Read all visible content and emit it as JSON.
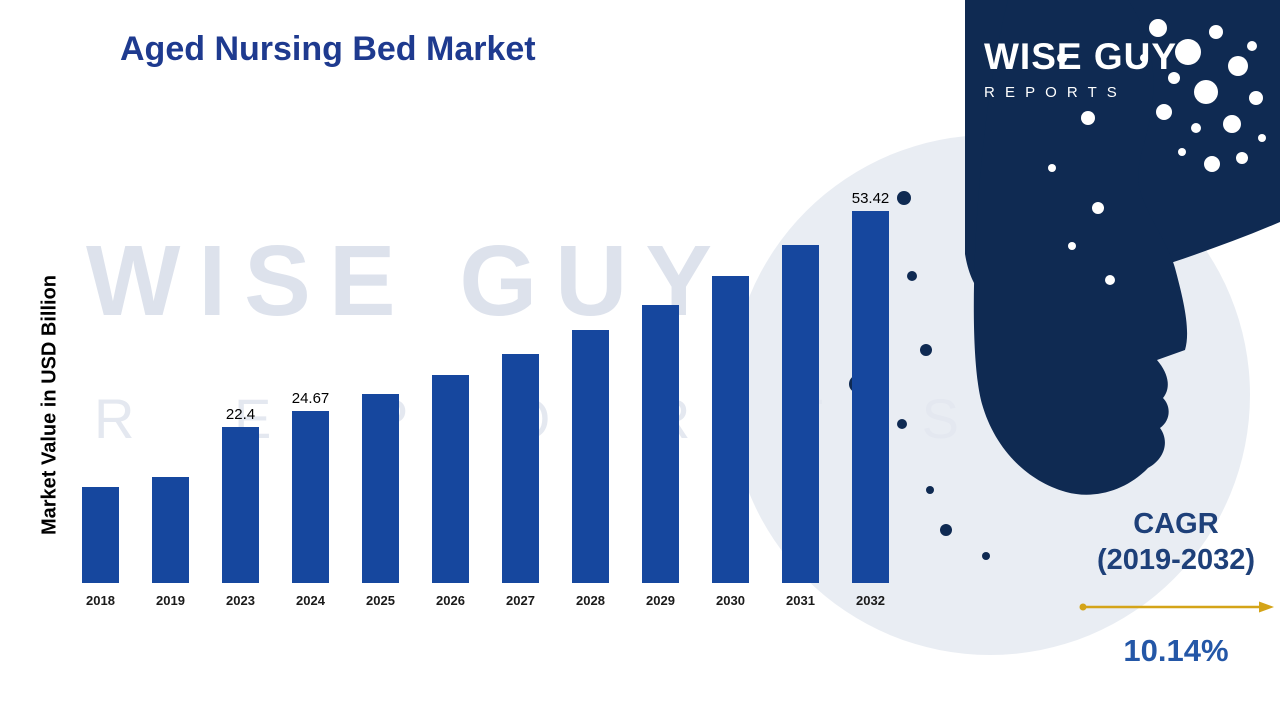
{
  "title": "Aged Nursing Bed Market",
  "logo": {
    "line1": "WISE GUY",
    "line2": "R E P O R T S"
  },
  "watermark": {
    "line1": "WISE GUY",
    "line2": "R E P O R T S"
  },
  "cagr": {
    "label": "CAGR",
    "range": "(2019-2032)",
    "value": "10.14%"
  },
  "colors": {
    "bar": "#16479e",
    "title": "#1e3a8f",
    "panel": "#0f2a52",
    "circle": "#e9edf3",
    "watermark": "#dde2ec",
    "watermark2": "#e4e8f0",
    "gold": "#d4a418",
    "cagr_text": "#1e4079",
    "cagr_value": "#2457a7"
  },
  "chart_data": {
    "type": "bar",
    "title": "Aged Nursing Bed Market",
    "xlabel": "",
    "ylabel": "Market Value in USD Billion",
    "categories": [
      "2018",
      "2019",
      "2023",
      "2024",
      "2025",
      "2026",
      "2027",
      "2028",
      "2029",
      "2030",
      "2031",
      "2032"
    ],
    "values": [
      13.82,
      15.22,
      22.4,
      24.67,
      27.17,
      29.93,
      32.96,
      36.3,
      39.98,
      44.04,
      48.5,
      53.42
    ],
    "labeled_points": {
      "2023": "22.4",
      "2024": "24.67",
      "2032": "53.42"
    },
    "ylim": [
      0,
      55
    ],
    "grid": false,
    "legend": "none"
  }
}
